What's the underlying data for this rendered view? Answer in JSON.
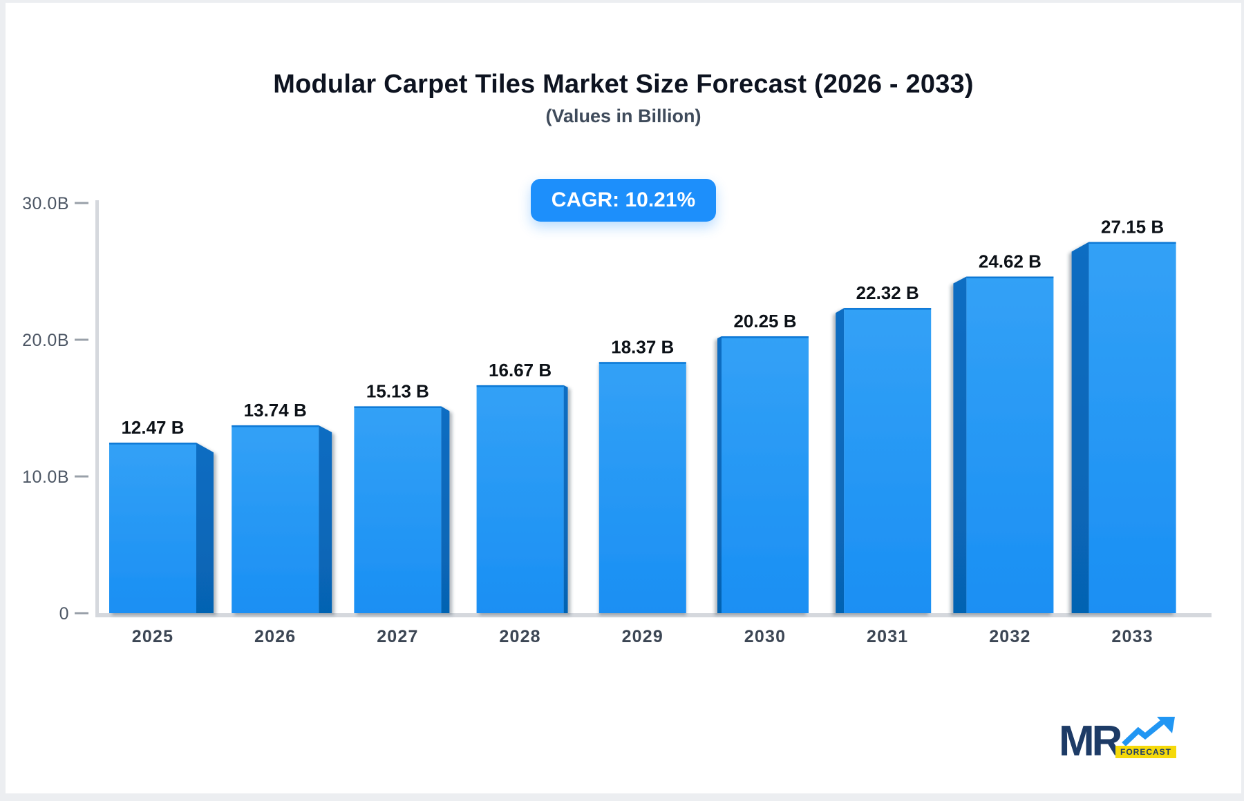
{
  "header": {
    "title": "Modular Carpet Tiles Market Size Forecast (2026 - 2033)",
    "subtitle": "(Values in Billion)",
    "cagr_badge": "CAGR: 10.21%"
  },
  "chart_data": {
    "type": "bar",
    "title": "Modular Carpet Tiles Market Size Forecast (2026 - 2033)",
    "subtitle": "(Values in Billion)",
    "cagr_percent": "10.21%",
    "categories": [
      "2025",
      "2026",
      "2027",
      "2028",
      "2029",
      "2030",
      "2031",
      "2032",
      "2033"
    ],
    "values": [
      12.47,
      13.74,
      15.13,
      16.67,
      18.37,
      20.25,
      22.32,
      24.62,
      27.15
    ],
    "value_labels": [
      "12.47 B",
      "13.74 B",
      "15.13 B",
      "16.67 B",
      "18.37 B",
      "20.25 B",
      "22.32 B",
      "24.62 B",
      "27.15 B"
    ],
    "yticks": [
      {
        "value": 30,
        "label": "30.0B"
      },
      {
        "value": 20,
        "label": "20.0B"
      },
      {
        "value": 10,
        "label": "10.0B"
      },
      {
        "value": 0,
        "label": "0"
      }
    ],
    "ylim": [
      0,
      30
    ],
    "xlabel": "",
    "ylabel": "",
    "grid": false,
    "legend": "none",
    "style_3d": true,
    "colors": {
      "bar_face_top": "#33a1f6",
      "bar_face_bottom": "#1a8ff3",
      "bar_top_edge": "#0d74d1",
      "bar_side_top": "#0a6dc2",
      "bar_side_bottom": "#0663b2",
      "axis_line": "#d5d8dd",
      "tick_dash": "#99a0a9",
      "ytick_label": "#4c5664",
      "xtick_label": "#3c4654",
      "value_label": "#0c1117"
    }
  },
  "logo": {
    "mr": "MR",
    "forecast": "FORECAST",
    "navy": "#1d3b66",
    "yellow": "#f5d90a",
    "arrow_blue": "#2196f3"
  }
}
